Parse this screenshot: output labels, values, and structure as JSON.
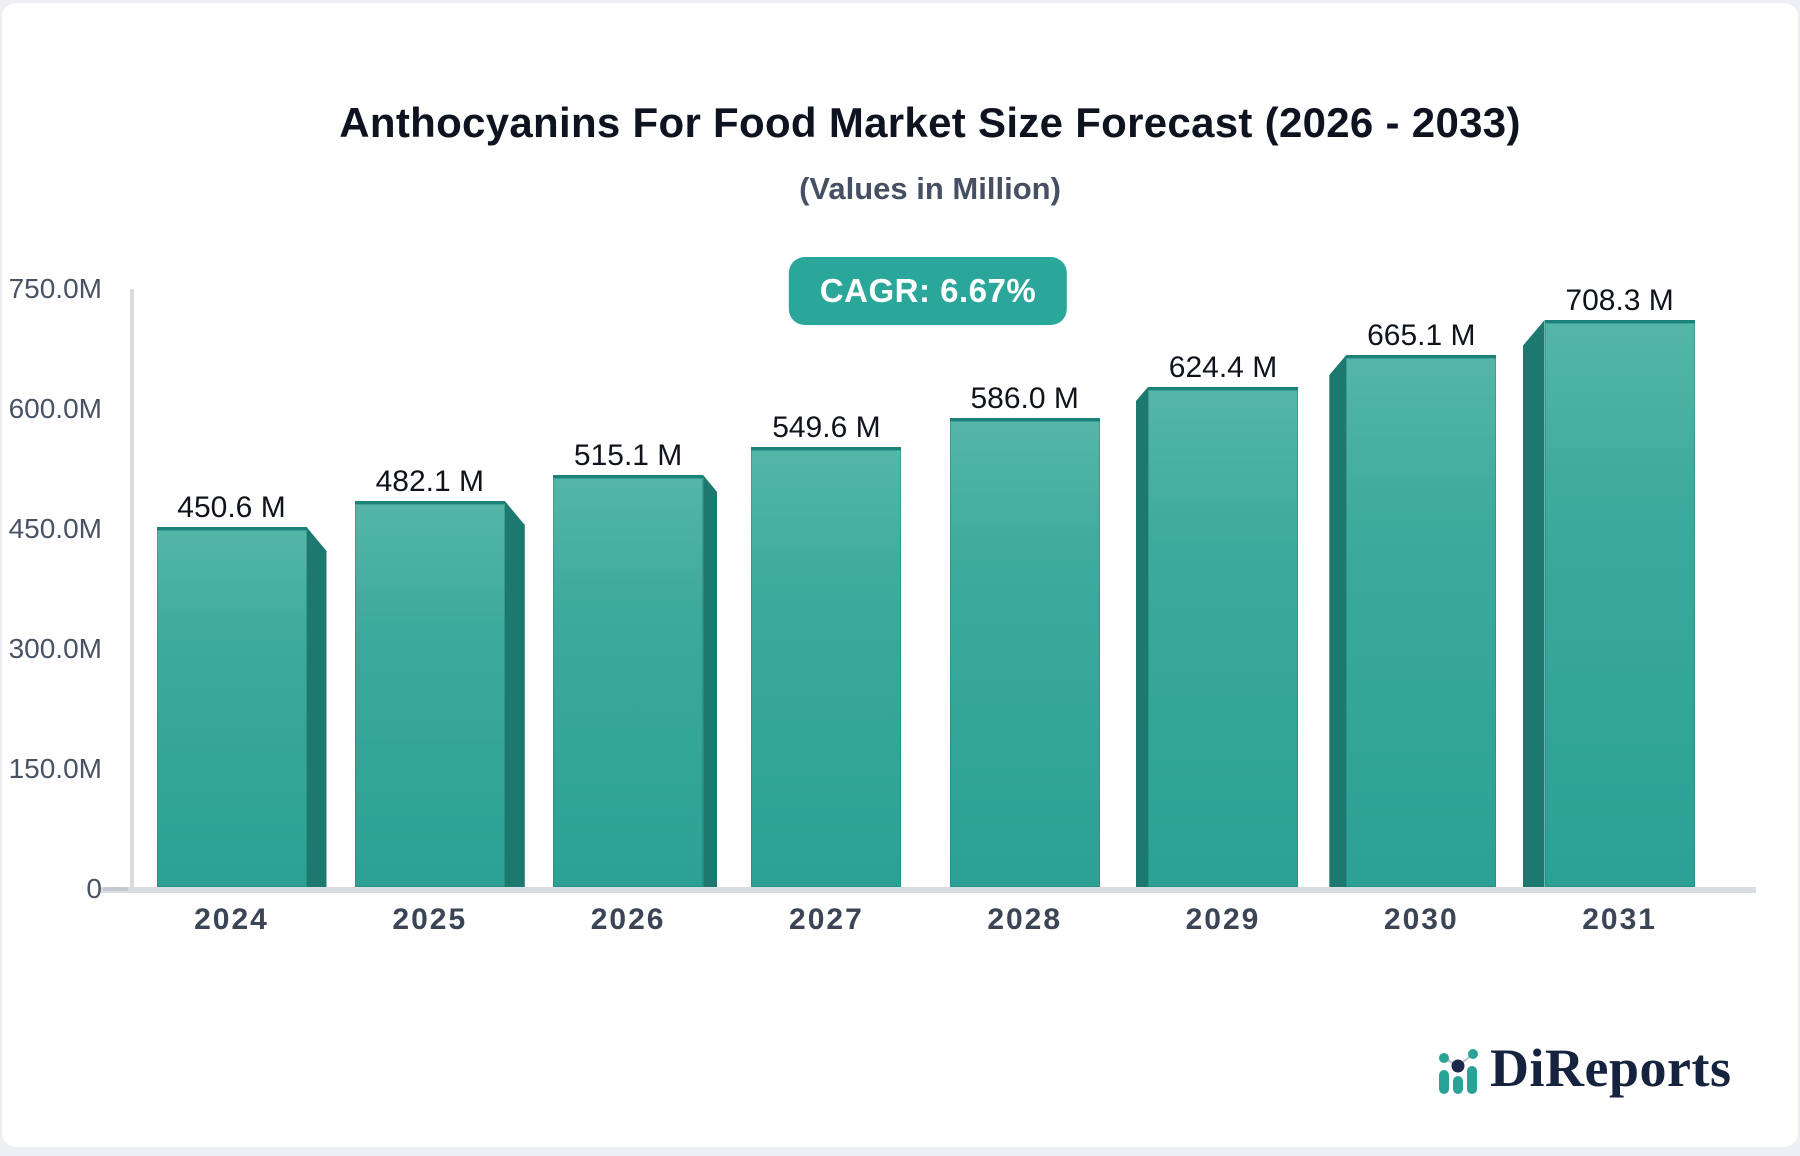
{
  "page": {
    "background": "#edeff2",
    "card_background": "#ffffff"
  },
  "header": {
    "title": "Anthocyanins For Food Market Size Forecast (2026 - 2033)",
    "subtitle": "(Values in Million)"
  },
  "badge": {
    "label": "CAGR: 6.67%",
    "color": "#2aa79a"
  },
  "chart_data": {
    "type": "bar",
    "categories": [
      "2024",
      "2025",
      "2026",
      "2027",
      "2028",
      "2029",
      "2030",
      "2031"
    ],
    "values": [
      450.6,
      482.1,
      515.1,
      549.6,
      586.0,
      624.4,
      665.1,
      708.3
    ],
    "value_labels": [
      "450.6 M",
      "482.1 M",
      "515.1 M",
      "549.6 M",
      "586.0 M",
      "624.4 M",
      "665.1 M",
      "708.3 M"
    ],
    "y_ticks": [
      {
        "label": "750.0M",
        "value": 750
      },
      {
        "label": "600.0M",
        "value": 600
      },
      {
        "label": "450.0M",
        "value": 450
      },
      {
        "label": "300.0M",
        "value": 300
      },
      {
        "label": "150.0M",
        "value": 150
      },
      {
        "label": "0",
        "value": 0
      }
    ],
    "ylim": [
      0,
      750
    ],
    "xlabel": "",
    "ylabel": "",
    "grid": false,
    "legend": false,
    "colors": {
      "bar_top": "#54b6a8",
      "bar_bottom": "#2ba195",
      "bar_side_3d": "#1d796f",
      "axis_line": "#d9dce1",
      "value_label": "#0f141c",
      "tick_label": "#495364"
    }
  },
  "watermark": {
    "brand": "DiReports",
    "icon": "bar-chart-logo-icon",
    "text_color": "#16233e",
    "accent": "#2aa296",
    "dot_accent": "#1b2a4a"
  }
}
